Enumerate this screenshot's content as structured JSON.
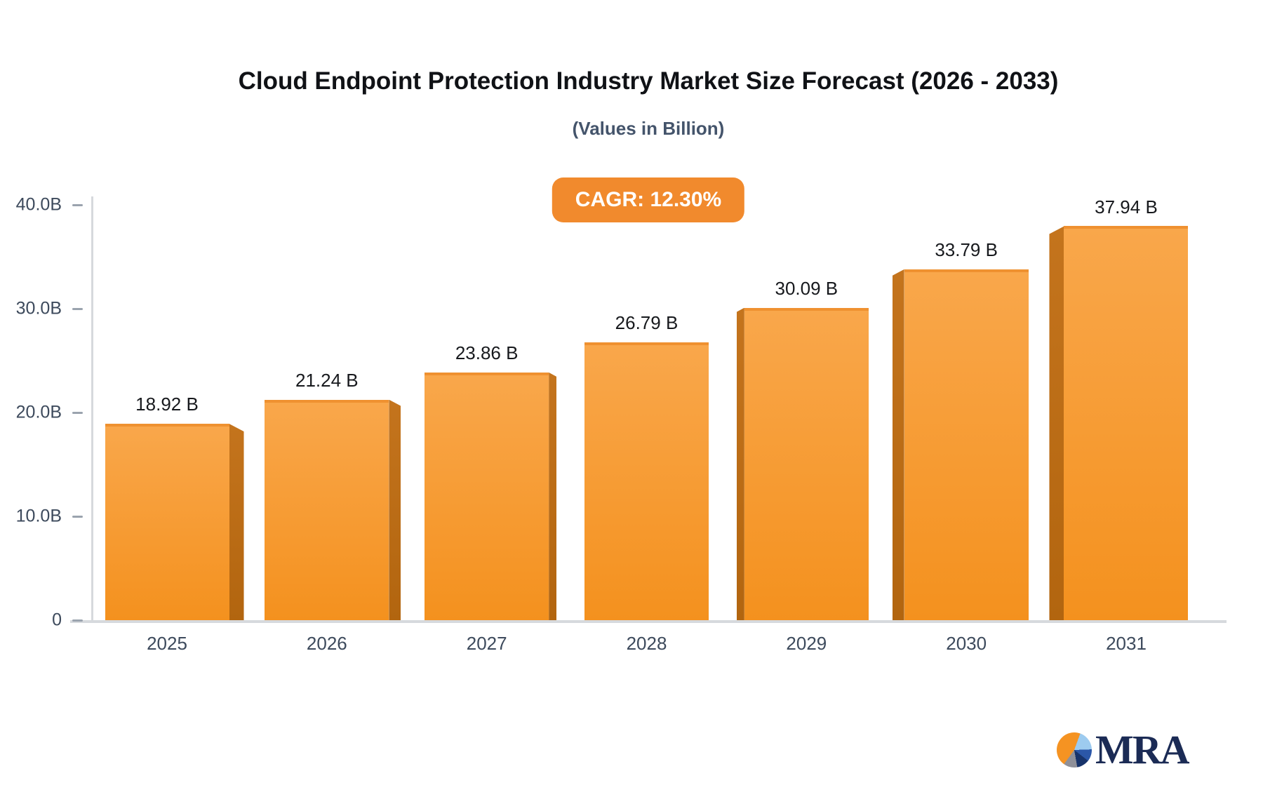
{
  "page": {
    "background": "#FFFFFF"
  },
  "chart_data": {
    "type": "bar",
    "title": "Cloud Endpoint Protection Industry Market Size Forecast (2026 - 2033)",
    "subtitle": "(Values in Billion)",
    "badge_label": "CAGR: 12.30%",
    "categories": [
      "2025",
      "2026",
      "2027",
      "2028",
      "2029",
      "2030",
      "2031"
    ],
    "values": [
      18.92,
      21.24,
      23.86,
      26.79,
      30.09,
      33.79,
      37.94
    ],
    "value_labels": [
      "18.92 B",
      "21.24 B",
      "23.86 B",
      "26.79 B",
      "30.09 B",
      "33.79 B",
      "37.94 B"
    ],
    "xlabel": "",
    "ylabel": "",
    "ylim": [
      0,
      40
    ],
    "y_ticks": [
      {
        "value": 0,
        "label": "0"
      },
      {
        "value": 10,
        "label": "10.0B"
      },
      {
        "value": 20,
        "label": "20.0B"
      },
      {
        "value": 30,
        "label": "30.0B"
      },
      {
        "value": 40,
        "label": "40.0B"
      }
    ],
    "grid": false,
    "legend": "none",
    "bar_style": "3d-extruded-center-perspective"
  },
  "colors": {
    "bar_face_top": "#F9A74B",
    "bar_face_bottom": "#F4911E",
    "bar_top_edge": "#EF9130",
    "bar_side_top": "#C4741D",
    "bar_side_bottom": "#B2650F",
    "badge_bg": "#F18A2D",
    "badge_text": "#FFFFFF",
    "axis_line": "#D6D9DD",
    "tick_mark": "#9AA3AE",
    "axis_text": "#3D4A5C",
    "value_text": "#17191D",
    "title_text": "#101216",
    "subtitle_text": "#44546B",
    "logo_navy": "#1B2B55",
    "logo_orange": "#F59322",
    "logo_lightblue": "#9DCBEF",
    "logo_blue": "#2B57A8",
    "logo_darkblue": "#17336B",
    "logo_gray": "#8F9099"
  },
  "logo": {
    "text": "MRA"
  }
}
